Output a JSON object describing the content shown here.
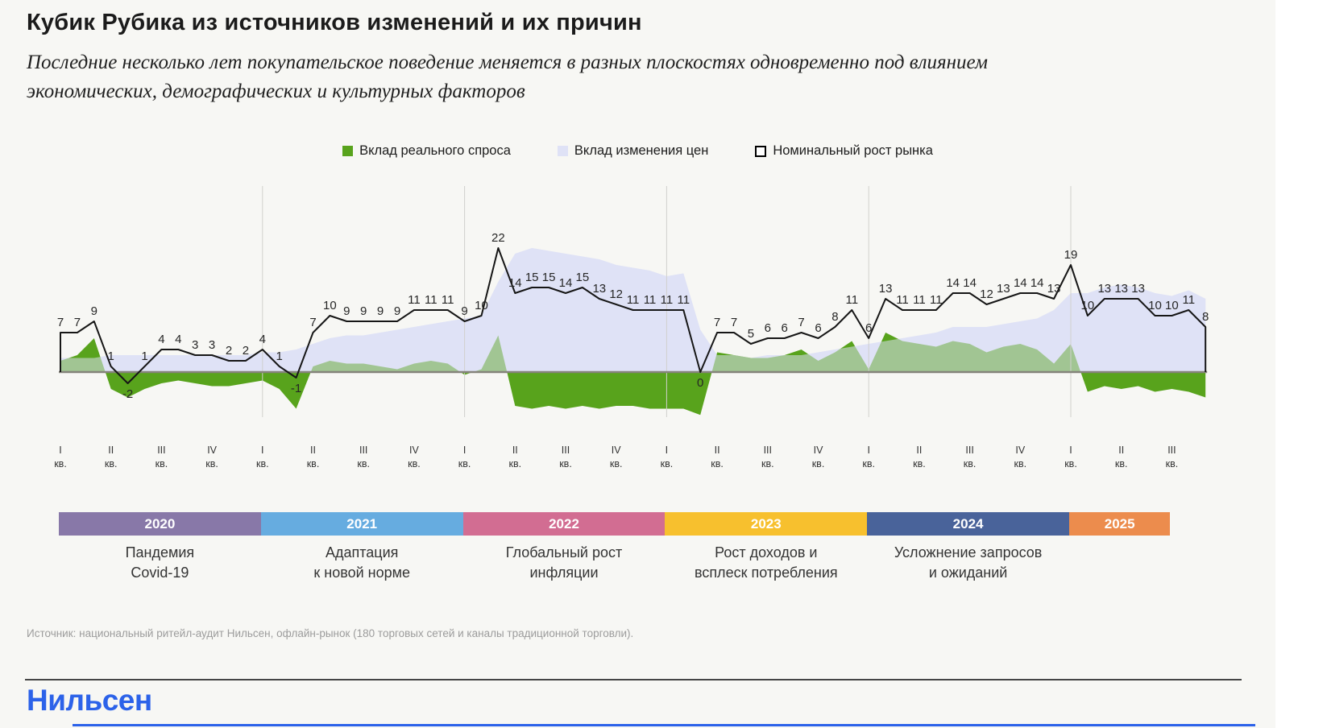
{
  "header": {
    "title": "Кубик Рубика из источников изменений и их причин",
    "subtitle": "Последние несколько лет покупательское поведение меняется в разных плоскостях одновременно под влиянием\nэкономических, демографических и культурных факторов"
  },
  "legend": {
    "items": [
      {
        "label": "Вклад реального спроса",
        "color": "#58a31c"
      },
      {
        "label": "Вклад изменения цен",
        "color": "#dfe2f6"
      },
      {
        "label": "Номинальный рост рынка",
        "color": "#ffffff",
        "border": "#000000"
      }
    ]
  },
  "chart_data": {
    "type": "area+line",
    "x_unit": "month",
    "start": "2020-01",
    "end": "2025-09",
    "quarters": [
      "I",
      "II",
      "III",
      "IV"
    ],
    "quarter_suffix": "кв.",
    "ylim": [
      -9,
      24
    ],
    "grid": "vertical lines at each year start, horizontal zero axis",
    "legend_position": "top center",
    "series": [
      {
        "name": "Вклад реального спроса",
        "role": "area",
        "color": "#58a31c",
        "values": [
          2,
          3,
          6,
          -3,
          -4.5,
          -3,
          -2,
          -1.5,
          -2,
          -2.5,
          -2.5,
          -2,
          -1.5,
          -3,
          -6.5,
          1,
          2,
          1.5,
          1.5,
          1,
          0.5,
          1.5,
          2,
          1.5,
          -0.5,
          0.5,
          6.5,
          -6,
          -6.5,
          -6,
          -6.5,
          -6,
          -6.5,
          -6,
          -6,
          -6.5,
          -6.5,
          -6.5,
          -7.6,
          3.5,
          3,
          2.5,
          2.5,
          3,
          4,
          2,
          3.5,
          5.5,
          0.5,
          7,
          5.5,
          5,
          4.5,
          5.5,
          5,
          3.5,
          4.5,
          5,
          4,
          1.5,
          5,
          -3.5,
          -2.5,
          -3,
          -2.5,
          -3.5,
          -3,
          -3.5,
          -4.5
        ]
      },
      {
        "name": "Вклад изменения цен",
        "role": "area",
        "color": "#dfe2f6",
        "values": [
          2.5,
          2.5,
          2.5,
          3,
          3,
          3,
          3,
          3,
          3,
          3,
          3,
          3,
          3.5,
          3.5,
          4,
          5,
          6,
          6.5,
          6.5,
          7,
          7.5,
          8,
          8.5,
          9,
          9.5,
          10,
          16,
          21,
          22,
          21.5,
          21,
          20.5,
          20,
          19,
          18.5,
          18,
          17,
          17.5,
          7.5,
          3,
          3,
          2.5,
          3,
          3,
          3,
          3.5,
          4,
          4.5,
          5,
          5.5,
          6,
          6.5,
          7,
          8,
          8,
          8,
          8.5,
          9,
          9.5,
          11,
          14,
          14,
          15,
          15.5,
          15,
          14,
          13.5,
          14.5,
          13
        ]
      },
      {
        "name": "Номинальный рост рынка",
        "role": "line",
        "color": "#161616",
        "values": [
          7,
          7,
          9,
          1,
          -2,
          1,
          4,
          4,
          3,
          3,
          2,
          2,
          4,
          1,
          -1,
          7,
          10,
          9,
          9,
          9,
          9,
          11,
          11,
          11,
          9,
          10,
          22,
          14,
          15,
          15,
          14,
          15,
          13,
          12,
          11,
          11,
          11,
          11,
          0,
          7,
          7,
          5,
          6,
          6,
          7,
          6,
          8,
          11,
          6,
          13,
          11,
          11,
          11,
          14,
          14,
          12,
          13,
          14,
          14,
          13,
          19,
          10,
          13,
          13,
          13,
          10,
          10,
          11,
          8
        ]
      }
    ],
    "years": [
      {
        "label": "2020",
        "color": "#8878a8",
        "width_months": 12,
        "caption": "Пандемия\nCovid-19"
      },
      {
        "label": "2021",
        "color": "#66ace0",
        "width_months": 12,
        "caption": "Адаптация\nк новой норме"
      },
      {
        "label": "2022",
        "color": "#d26d92",
        "width_months": 12,
        "caption": "Глобальный рост\nинфляции"
      },
      {
        "label": "2023",
        "color": "#f7c02e",
        "width_months": 12,
        "caption": "Рост доходов и\nвсплеск потребления"
      },
      {
        "label": "2024",
        "color": "#49639a",
        "width_months": 12,
        "caption": "Усложнение запросов\nи ожиданий"
      },
      {
        "label": "2025",
        "color": "#ec8c4d",
        "width_months": 6,
        "caption": ""
      }
    ]
  },
  "footer": {
    "source": "Источник: национальный ритейл-аудит Нильсен, офлайн-рынок (180 торговых сетей и каналы традиционной торговли).",
    "logo": "Нильсен"
  }
}
